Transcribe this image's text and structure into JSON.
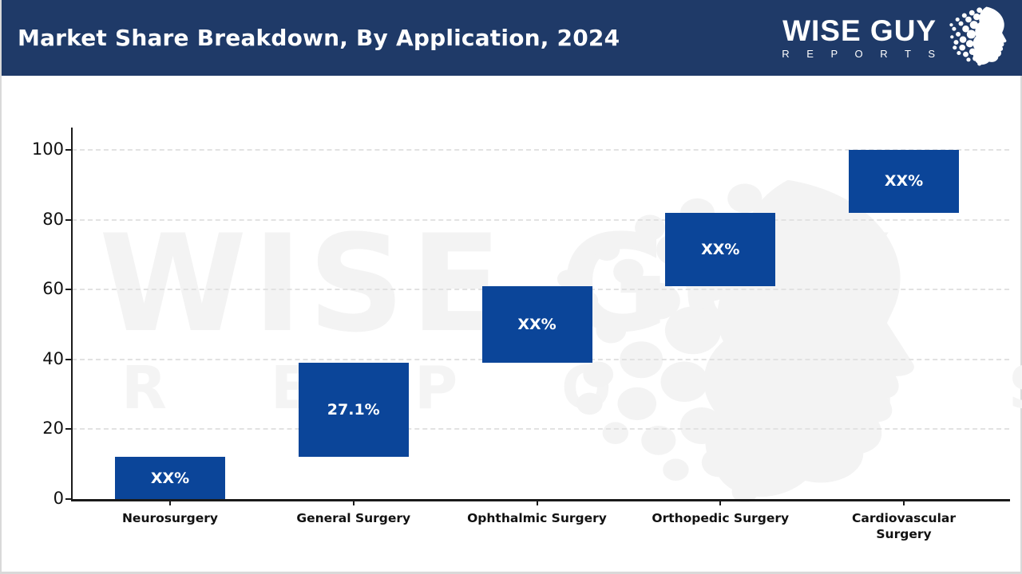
{
  "header": {
    "title": "Market Share Breakdown, By Application, 2024",
    "logo": {
      "line1": "WISE GUY",
      "line2": "R E P O R T S",
      "face_icon": "dotted-head-profile"
    },
    "background_color": "#1f3a68"
  },
  "watermark": {
    "line1": "WISE GUY",
    "line2": "R E P O R T S",
    "face_icon": "dotted-head-profile",
    "color": "#f3f3f3"
  },
  "chart_data": {
    "type": "bar",
    "subtype": "waterfall",
    "title": "Market Share Breakdown, By Application, 2024",
    "categories": [
      "Neurosurgery",
      "General Surgery",
      "Ophthalmic Surgery",
      "Orthopedic Surgery",
      "Cardiovascular\nSurgery"
    ],
    "bars": [
      {
        "category": "Neurosurgery",
        "start": 0,
        "end": 12,
        "label": "XX%"
      },
      {
        "category": "General Surgery",
        "start": 12,
        "end": 39.1,
        "label": "27.1%"
      },
      {
        "category": "Ophthalmic Surgery",
        "start": 39.1,
        "end": 61,
        "label": "XX%"
      },
      {
        "category": "Orthopedic Surgery",
        "start": 61,
        "end": 82,
        "label": "XX%"
      },
      {
        "category": "Cardiovascular Surgery",
        "start": 82,
        "end": 100,
        "label": "XX%"
      }
    ],
    "xlabel": "",
    "ylabel": "",
    "yticks": [
      0,
      20,
      40,
      60,
      80,
      100
    ],
    "ylim": [
      0,
      106
    ],
    "grid": "horizontal-dashed",
    "legend": "none",
    "bar_color": "#0b4599",
    "bar_label_color": "#ffffff",
    "axis_color": "#1a1a1a"
  }
}
